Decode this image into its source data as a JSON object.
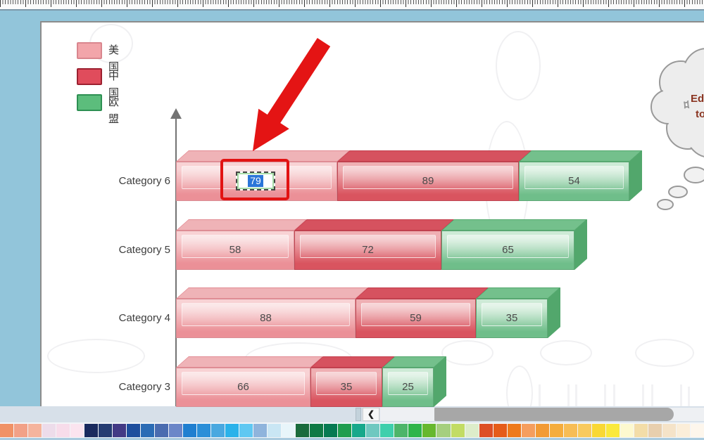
{
  "chart_data": {
    "type": "bar",
    "orientation": "horizontal-stacked-3d",
    "categories": [
      "Category 6",
      "Category 5",
      "Category 4",
      "Category 3"
    ],
    "series": [
      {
        "name": "美国",
        "values": [
          79,
          58,
          88,
          66
        ]
      },
      {
        "name": "中国",
        "values": [
          89,
          72,
          59,
          35
        ]
      },
      {
        "name": "欧盟",
        "values": [
          54,
          65,
          35,
          25
        ]
      }
    ],
    "legend_position": "top-left",
    "axis": "vertical category axis with arrow, no value ticks",
    "grid": false
  },
  "legend": {
    "items": [
      {
        "label": "美国",
        "fill": "#f2a5aa",
        "border": "#d9868e"
      },
      {
        "label": "中国",
        "fill": "#e04c5c",
        "border": "#9c2130"
      },
      {
        "label": "欧盟",
        "fill": "#5cbd7c",
        "border": "#2e9053"
      }
    ]
  },
  "series_styles": [
    {
      "front_top": "#f8d2d4",
      "front_bottom": "#eb9097",
      "top_face": "#efb3b7",
      "side_face": "#e28b93",
      "border": "#d98f96"
    },
    {
      "front_top": "#efafb3",
      "front_bottom": "#d9545f",
      "top_face": "#d6525f",
      "side_face": "#c23c4b",
      "border": "#bf4753"
    },
    {
      "front_top": "#cdead6",
      "front_bottom": "#6fbe8a",
      "top_face": "#74c08c",
      "side_face": "#52a76c",
      "border": "#5fa877"
    }
  ],
  "editing": {
    "row": 0,
    "series": 0,
    "value": "79",
    "selection_color": "#2b76d8"
  },
  "annotation": {
    "arrow_color": "#e41414",
    "highlight_color": "#e21313"
  },
  "thought_bubble": {
    "line1": "Ed",
    "line2": "to"
  },
  "scrollbar": {
    "left_arrow": "❮"
  },
  "value_label_color": "#4a4a4a",
  "palette": {
    "colors": [
      "#f09266",
      "#f2a187",
      "#f5b49d",
      "#eddcea",
      "#f7dcea",
      "#fbe4ef",
      "#1a2a5e",
      "#253c72",
      "#433a85",
      "#1e4e9d",
      "#2b6cb5",
      "#4a6cb0",
      "#6b86c8",
      "#1f7fd0",
      "#2b8fd8",
      "#49a8e0",
      "#2ab2ea",
      "#5fc8f2",
      "#8fb4dc",
      "#c9e6f4",
      "#e8f5fa",
      "#1a6b3c",
      "#0f7a45",
      "#067a52",
      "#1f9d4f",
      "#17a88b",
      "#6fc8c0",
      "#3ecfac",
      "#4db56a",
      "#2fb54a",
      "#66b82e",
      "#a5cf7e",
      "#c2dc64",
      "#ddedca",
      "#dd4f26",
      "#e55c1a",
      "#ee7a1c",
      "#f59e5e",
      "#f29b35",
      "#f5ad3d",
      "#f7bd55",
      "#f8ca5e",
      "#f9d834",
      "#fae93c",
      "#fdf9cf",
      "#f3dda8",
      "#e8cfae",
      "#f5e3c8",
      "#fbeed9",
      "#fdf6ec"
    ]
  }
}
